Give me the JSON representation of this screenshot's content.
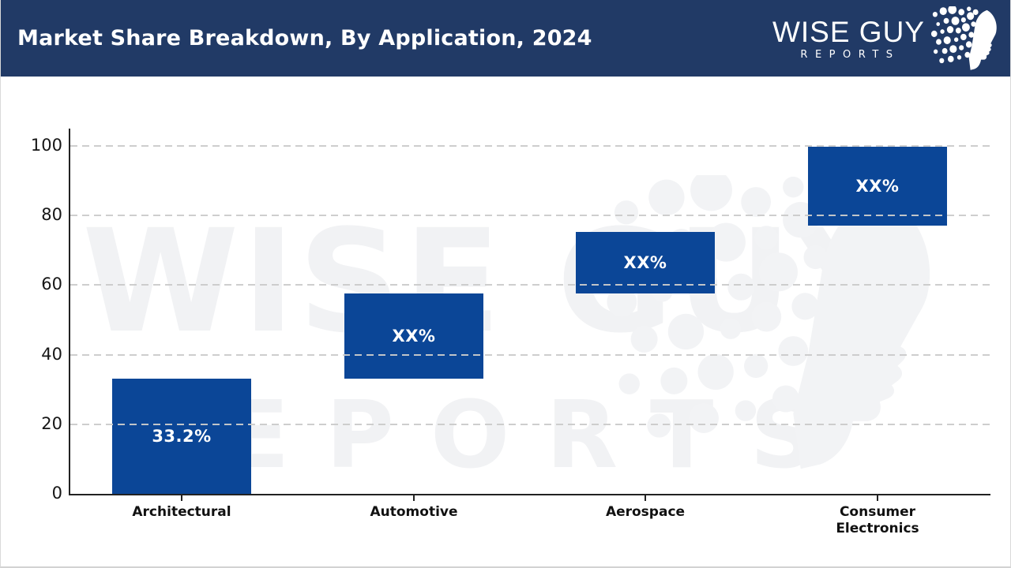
{
  "header": {
    "title": "Market Share Breakdown, By Application, 2024",
    "logo": {
      "line1": "WISE GUY",
      "line2": "REPORTS"
    }
  },
  "watermark": {
    "line1": "WISE GUY",
    "line2": "REPORTS"
  },
  "colors": {
    "header_bg": "#213a66",
    "bar": "#0b4697",
    "bar_label": "#ffffff",
    "axis": "#222222",
    "gridline": "#cdcdcd",
    "watermark": "#f1f2f4",
    "title_text": "#ffffff"
  },
  "chart_data": {
    "type": "bar",
    "subtype": "waterfall",
    "title": "Market Share Breakdown, By Application, 2024",
    "categories": [
      "Architectural",
      "Automotive",
      "Aerospace",
      "Consumer Electronics"
    ],
    "segments": [
      {
        "category": "Architectural",
        "start": 0,
        "end": 33.2,
        "label": "33.2%"
      },
      {
        "category": "Automotive",
        "start": 33.2,
        "end": 57.5,
        "label": "XX%"
      },
      {
        "category": "Aerospace",
        "start": 57.5,
        "end": 75.2,
        "label": "XX%"
      },
      {
        "category": "Consumer Electronics",
        "start": 77,
        "end": 99.8,
        "label": "XX%"
      }
    ],
    "yticks": [
      0,
      20,
      40,
      60,
      80,
      100
    ],
    "ylim": [
      0,
      105
    ],
    "xlabel": "",
    "ylabel": "",
    "grid": "horizontal-dashed",
    "legend": "none"
  }
}
